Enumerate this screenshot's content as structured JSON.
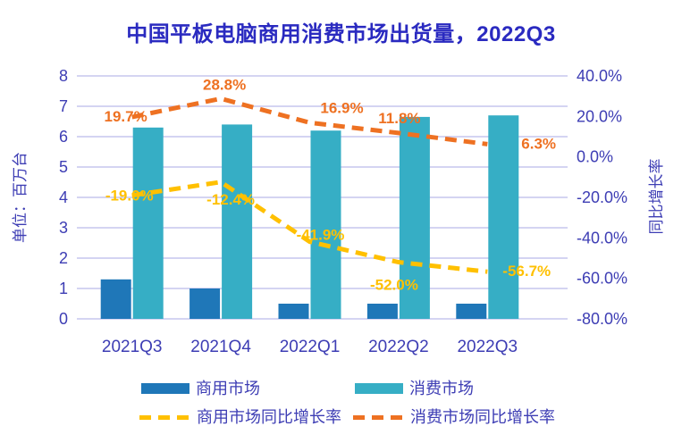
{
  "title": "中国平板电脑商用消费市场出货量，2022Q3",
  "colors": {
    "title_text": "#2a2ac0",
    "axis_text": "#3d3db4",
    "gridline": "#c5c5ee",
    "commercial_bar": "#1f77b8",
    "consumer_bar": "#36aec5",
    "commercial_growth_line": "#ffc000",
    "consumer_growth_line": "#ee7122",
    "background": "#ffffff"
  },
  "chart_data": {
    "type": "combo-bar-line",
    "categories": [
      "2021Q3",
      "2021Q4",
      "2022Q1",
      "2022Q2",
      "2022Q3"
    ],
    "bar_series": [
      {
        "name": "商用市场",
        "color": "#1f77b8",
        "axis": "left",
        "values": [
          1.3,
          1.0,
          0.5,
          0.5,
          0.5
        ]
      },
      {
        "name": "消费市场",
        "color": "#36aec5",
        "axis": "left",
        "values": [
          6.3,
          6.4,
          6.2,
          6.65,
          6.7
        ]
      }
    ],
    "line_series": [
      {
        "name": "商用市场同比增长率",
        "color": "#ffc000",
        "axis": "right",
        "style": "dashed",
        "values_pct": [
          -19.0,
          -12.4,
          -41.9,
          -52.0,
          -56.7
        ]
      },
      {
        "name": "消费市场同比增长率",
        "color": "#ee7122",
        "axis": "right",
        "style": "dashed",
        "values_pct": [
          19.7,
          28.8,
          16.9,
          11.8,
          6.3
        ]
      }
    ],
    "left_axis": {
      "title": "单位：百万台",
      "ticks": [
        0,
        1,
        2,
        3,
        4,
        5,
        6,
        7,
        8
      ],
      "range": [
        0,
        8
      ]
    },
    "right_axis": {
      "title": "同比增长率",
      "ticks_pct": [
        40,
        20,
        0,
        -20,
        -40,
        -60,
        -80
      ],
      "range_pct": [
        -80,
        40
      ]
    },
    "grid": "horizontal",
    "legend_position": "bottom"
  }
}
